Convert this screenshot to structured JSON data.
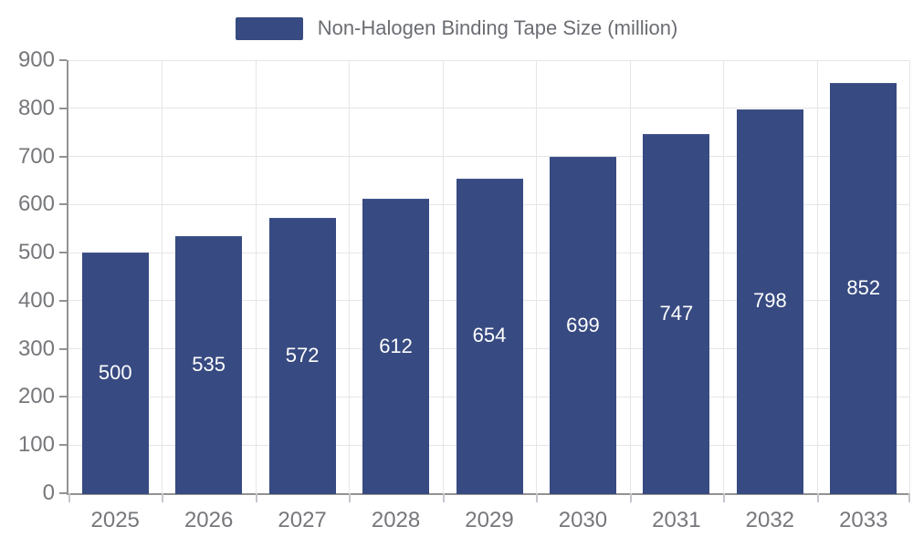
{
  "chart_data": {
    "type": "bar",
    "title": "Non-Halogen Binding Tape Size (million)",
    "categories": [
      "2025",
      "2026",
      "2027",
      "2028",
      "2029",
      "2030",
      "2031",
      "2032",
      "2033"
    ],
    "values": [
      500,
      535,
      572,
      612,
      654,
      699,
      747,
      798,
      852
    ],
    "xlabel": "",
    "ylabel": "",
    "ylim": [
      0,
      900
    ],
    "ytick_step": 100,
    "grid": "horizontal-and-vertical",
    "legend_position": "top-center",
    "value_labels": "inside-center-white",
    "colors": {
      "bar": "#374a81",
      "bar_edge": "#46568c",
      "value_label": "#ffffff",
      "axis_text": "#76777b",
      "legend_text": "#6b6d73",
      "grid_line": "#e6e6ea",
      "axis_line": "#929292",
      "background": "#ffffff"
    }
  }
}
